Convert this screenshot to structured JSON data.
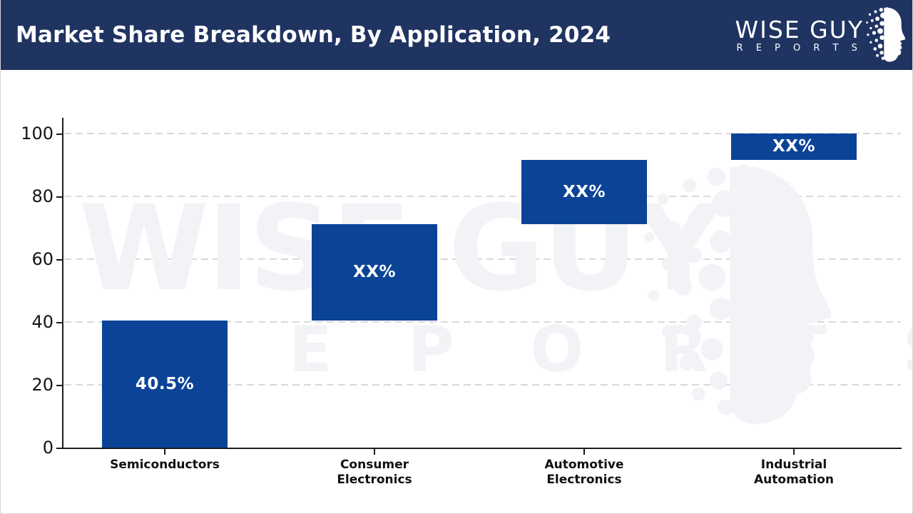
{
  "header": {
    "title": "Market Share Breakdown, By Application, 2024",
    "brand": {
      "name_line": "WISE GUY",
      "reports_spaced": "R E P O R T S"
    }
  },
  "watermark": {
    "text_line": "WISE GUY",
    "reports_spaced": "R E P O R T S"
  },
  "chart_data": {
    "type": "bar",
    "subtype": "waterfall",
    "title": "Market Share Breakdown, By Application, 2024",
    "categories": [
      "Semiconductors",
      "Consumer Electronics",
      "Automotive Electronics",
      "Industrial Automation"
    ],
    "category_lines": [
      [
        "Semiconductors"
      ],
      [
        "Consumer",
        "Electronics"
      ],
      [
        "Automotive",
        "Electronics"
      ],
      [
        "Industrial",
        "Automation"
      ]
    ],
    "segments": [
      {
        "category": "Semiconductors",
        "start": 0,
        "end": 40.5,
        "value": 40.5,
        "label": "40.5%"
      },
      {
        "category": "Consumer Electronics",
        "start": 40.5,
        "end": 71,
        "value": 30.5,
        "label": "XX%"
      },
      {
        "category": "Automotive Electronics",
        "start": 71,
        "end": 91.5,
        "value": 20.5,
        "label": "XX%"
      },
      {
        "category": "Industrial Automation",
        "start": 91.5,
        "end": 100,
        "value": 8.5,
        "label": "XX%"
      }
    ],
    "y_ticks": [
      0,
      20,
      40,
      60,
      80,
      100
    ],
    "ylim": [
      0,
      100
    ],
    "xlabel": "",
    "ylabel": "",
    "grid": "horizontal-dashed",
    "legend": "none",
    "bar_color": "#0b4397",
    "bar_label_color": "#ffffff"
  },
  "colors": {
    "header_bg": "#203462",
    "bar": "#0b4397",
    "gridline": "#d9d9d9",
    "axis": "#1c1c1c",
    "watermark": "#f2f3f6"
  }
}
